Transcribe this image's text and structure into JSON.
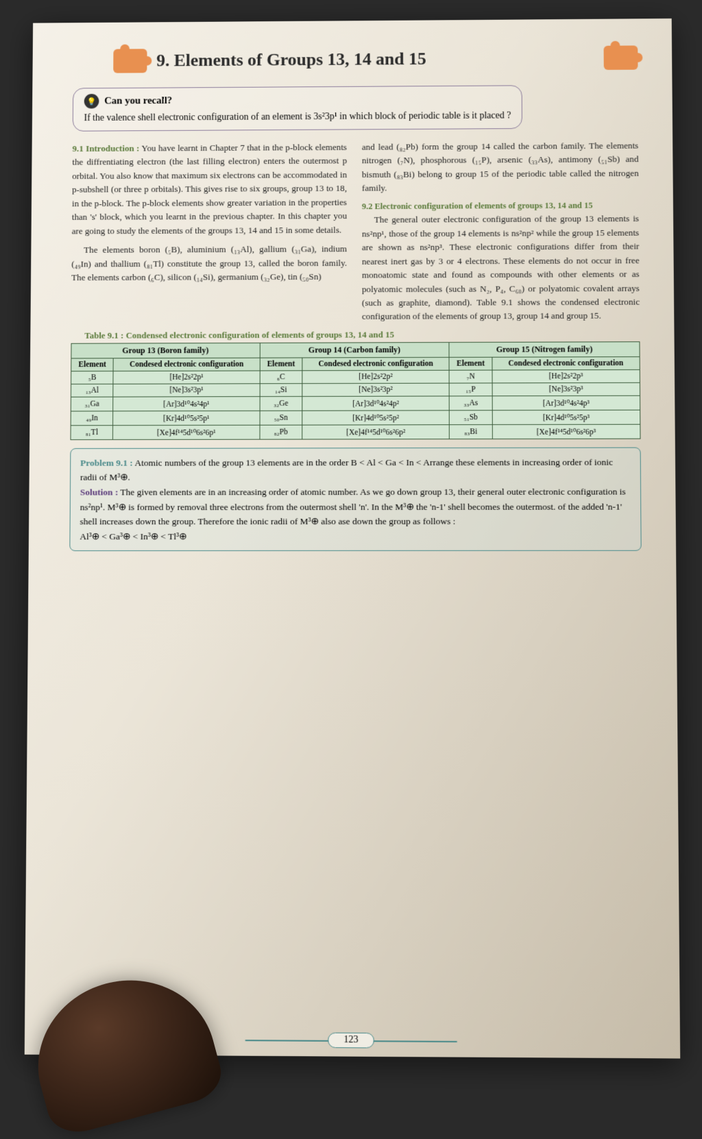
{
  "chapter": {
    "number": "9.",
    "title": "Elements of Groups 13, 14 and 15"
  },
  "recall": {
    "header": "Can you recall?",
    "body": "If the valence shell electronic configuration of an element is 3s²3p¹ in which block of periodic table is it placed ?"
  },
  "left_column": {
    "sec91_head": "9.1 Introduction :",
    "sec91_body": " You have learnt in Chapter 7 that in the p-block elements the diffrentiating electron (the last filling electron) enters the outermost p orbital. You also know that maximum six electrons can be accommodated in p-subshell (or three p orbitals). This gives rise to six groups, group 13 to 18, in the p-block. The p-block elements show greater variation in the properties than 's' block, which you learnt in the previous chapter. In this chapter you are going to study the elements of the groups 13, 14 and 15 in some details.",
    "para2": "The elements boron (₅B), aluminium (₁₃Al), gallium (₃₁Ga), indium (₄₉In) and thallium (₈₁Tl) constitute the group 13, called the boron family. The elements carbon (₆C), silicon (₁₄Si), germanium (₃₂Ge), tin (₅₀Sn)"
  },
  "right_column": {
    "para1": "and lead (₈₂Pb) form the group 14 called the carbon family. The elements nitrogen (₇N), phosphorous (₁₅P), arsenic (₃₃As), antimony (₅₁Sb) and bismuth (₈₃Bi) belong to group 15 of the periodic table called the nitrogen family.",
    "sec92_head": "9.2 Electronic configuration of elements of groups 13, 14 and 15",
    "sec92_body": "The general outer electronic configuration of the group 13 elements is ns²np¹, those of the group 14 elements is ns²np² while the group 15 elements are shown as ns²np³. These electronic configurations differ from their nearest inert gas by 3 or 4 electrons. These elements do not occur in free monoatomic state and found as compounds with other elements or as polyatomic molecules (such as N₂, P₄, C₆₀) or polyatomic covalent arrays (such as graphite, diamond). Table 9.1 shows the condensed electronic configuration of the elements of group 13, group 14 and group 15."
  },
  "table": {
    "caption": "Table 9.1 : Condensed electronic configuration of elements of groups 13, 14 and 15",
    "group_heads": [
      "Group 13 (Boron family)",
      "Group 14 (Carbon family)",
      "Group 15 (Nitrogen family)"
    ],
    "col_heads": [
      "Element",
      "Condesed electronic configuration",
      "Element",
      "Condesed electronic configuration",
      "Element",
      "Condesed electronic configuration"
    ],
    "rows": [
      [
        "₅B",
        "[He]2s²2p¹",
        "₆C",
        "[He]2s²2p²",
        "₇N",
        "[He]2s²2p³"
      ],
      [
        "₁₃Al",
        "[Ne]3s²3p¹",
        "₁₄Si",
        "[Ne]3s²3p²",
        "₁₅P",
        "[Ne]3s²3p³"
      ],
      [
        "₃₁Ga",
        "[Ar]3d¹⁰4s²4p¹",
        "₃₂Ge",
        "[Ar]3d¹⁰4s²4p²",
        "₃₃As",
        "[Ar]3d¹⁰4s²4p³"
      ],
      [
        "₄₉In",
        "[Kr]4d¹⁰5s²5p¹",
        "₅₀Sn",
        "[Kr]4d¹⁰5s²5p²",
        "₅₁Sb",
        "[Kr]4d¹⁰5s²5p³"
      ],
      [
        "₈₁Tl",
        "[Xe]4f¹⁴5d¹⁰6s²6p¹",
        "₈₂Pb",
        "[Xe]4f¹⁴5d¹⁰6s²6p²",
        "₈₃Bi",
        "[Xe]4f¹⁴5d¹⁰6s²6p³"
      ]
    ]
  },
  "problem": {
    "label": "Problem 9.1 :",
    "text": " Atomic numbers of the group 13 elements are in the order B < Al < Ga < In < Arrange these elements in increasing order of ionic radii of M³⊕.",
    "solution_label": "Solution :",
    "solution_text": " The given elements are in an increasing order of atomic number. As we go down group 13, their general outer electronic configuration is ns²np¹. M³⊕ is formed by removal three electrons from the outermost shell 'n'. In the M³⊕ the 'n-1' shell becomes the outermost. of the added 'n-1' shell increases down the group. Therefore the ionic radii of M³⊕ also ase down the group as follows :",
    "answer": "Al³⊕ < Ga³⊕ < In³⊕ < Tl³⊕"
  },
  "page_number": "123",
  "colors": {
    "page_bg": "#ebe5d8",
    "accent_green": "#5a7a3a",
    "accent_teal": "#4a8a8a",
    "table_bg": "#d4e8d4",
    "puzzle": "#e89050"
  }
}
